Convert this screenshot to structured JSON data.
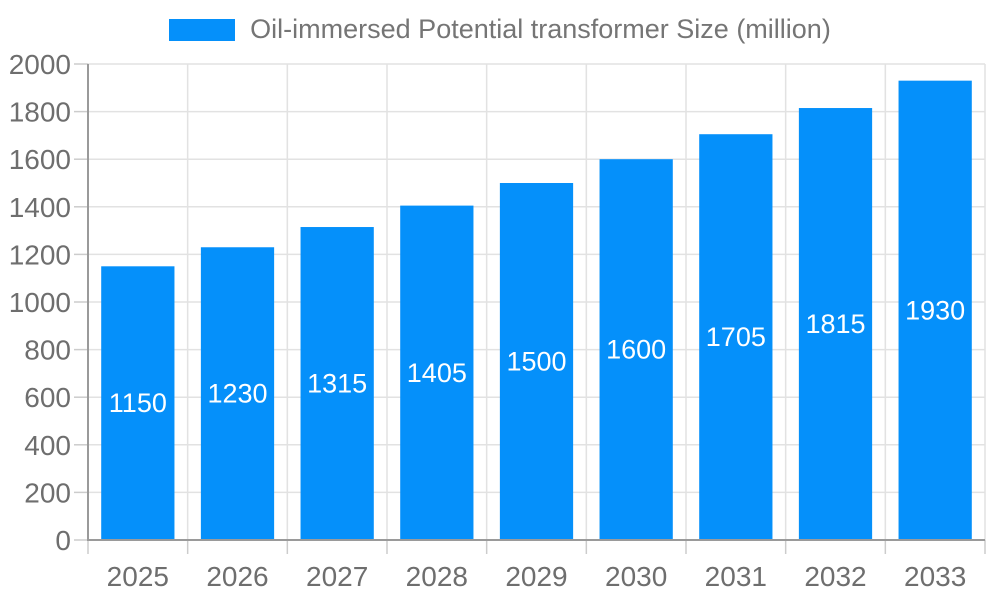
{
  "legend": {
    "label": "Oil-immersed Potential transformer Size (million)"
  },
  "colors": {
    "bar": "#0590FA",
    "bar_label": "#FFFFFF",
    "axis_label": "#6E6E6E",
    "legend_text": "#757575",
    "gridline": "#E2E2E2",
    "axis_line": "#9A9A9A",
    "tick": "#CCCCCC",
    "background": "#FFFFFF"
  },
  "chart_data": {
    "type": "bar",
    "title": "",
    "xlabel": "",
    "ylabel": "",
    "categories": [
      "2025",
      "2026",
      "2027",
      "2028",
      "2029",
      "2030",
      "2031",
      "2032",
      "2033"
    ],
    "series": [
      {
        "name": "Oil-immersed Potential transformer Size (million)",
        "values": [
          1150,
          1230,
          1315,
          1405,
          1500,
          1600,
          1705,
          1815,
          1930
        ]
      }
    ],
    "ylim": [
      0,
      2000
    ],
    "ytick_step": 200,
    "grid": true,
    "legend_position": "top-center",
    "bar_value_labels": "inside-center"
  }
}
